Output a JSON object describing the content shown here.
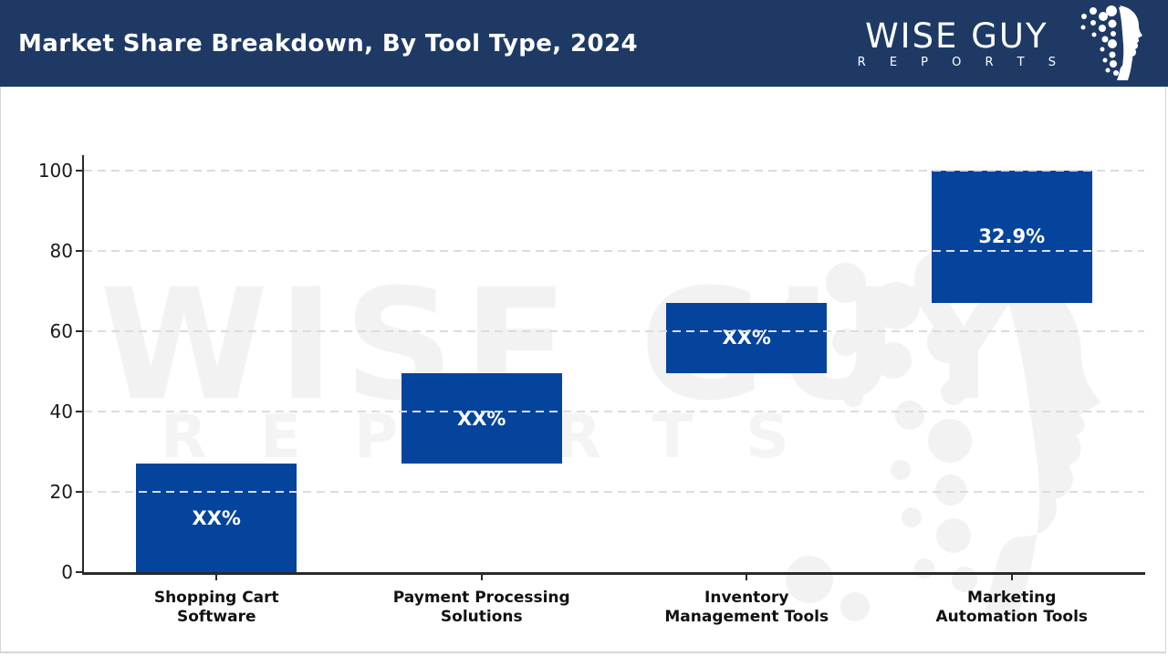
{
  "header": {
    "title": "Market Share Breakdown, By Tool Type, 2024",
    "bg_color": "#1e3a64",
    "logo": {
      "line1": "WISE GUY",
      "line2": "REPORTS"
    }
  },
  "watermark": {
    "line1": "WISE GUY",
    "line2": "REPORTS"
  },
  "chart_data": {
    "type": "bar",
    "subtype": "waterfall",
    "title": "Market Share Breakdown, By Tool Type, 2024",
    "xlabel": "",
    "ylabel": "",
    "ylim": [
      0,
      100
    ],
    "yticks": [
      0,
      20,
      40,
      60,
      80,
      100
    ],
    "grid": "horizontal-dashed",
    "legend": "none",
    "bar_color": "#04449c",
    "categories": [
      "Shopping Cart Software",
      "Payment Processing Solutions",
      "Inventory Management Tools",
      "Marketing Automation Tools"
    ],
    "segments": [
      {
        "category_lines": [
          "Shopping Cart",
          "Software"
        ],
        "start": 0,
        "end": 27,
        "value": 27,
        "label": "XX%"
      },
      {
        "category_lines": [
          "Payment Processing",
          "Solutions"
        ],
        "start": 27,
        "end": 49.5,
        "value": 22.5,
        "label": "XX%"
      },
      {
        "category_lines": [
          "Inventory",
          "Management Tools"
        ],
        "start": 49.5,
        "end": 67.1,
        "value": 17.6,
        "label": "XX%"
      },
      {
        "category_lines": [
          "Marketing",
          "Automation Tools"
        ],
        "start": 67.1,
        "end": 100,
        "value": 32.9,
        "label": "32.9%"
      }
    ]
  }
}
